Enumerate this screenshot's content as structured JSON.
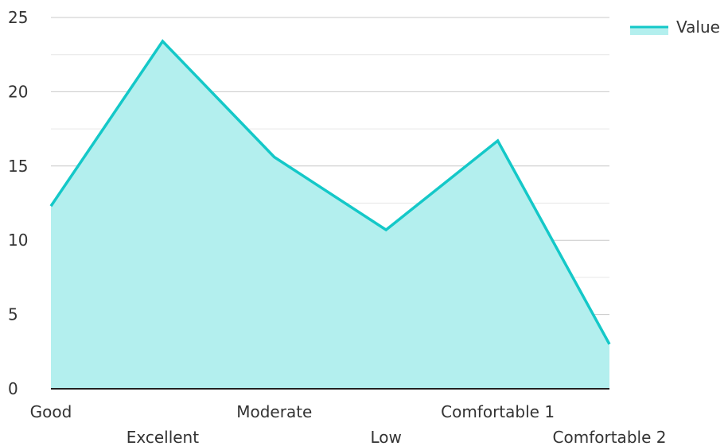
{
  "chart_data": {
    "type": "area",
    "title": "",
    "xlabel": "",
    "ylabel": "",
    "categories": [
      "Good",
      "Excellent",
      "Moderate",
      "Low",
      "Comfortable 1",
      "Comfortable 2"
    ],
    "series": [
      {
        "name": "Value",
        "values": [
          12.3,
          23.4,
          15.6,
          10.7,
          16.7,
          3.0
        ]
      }
    ],
    "ylim": [
      0,
      25
    ],
    "yticks": [
      "0",
      "5",
      "10",
      "15",
      "20",
      "25"
    ],
    "grid": true,
    "legend": "top-right",
    "colors": {
      "line": "#14c8c8",
      "fill": "#b3efee",
      "grid_major": "#c8c8c8",
      "grid_minor": "#e6e6e6",
      "axis": "#222222"
    }
  }
}
